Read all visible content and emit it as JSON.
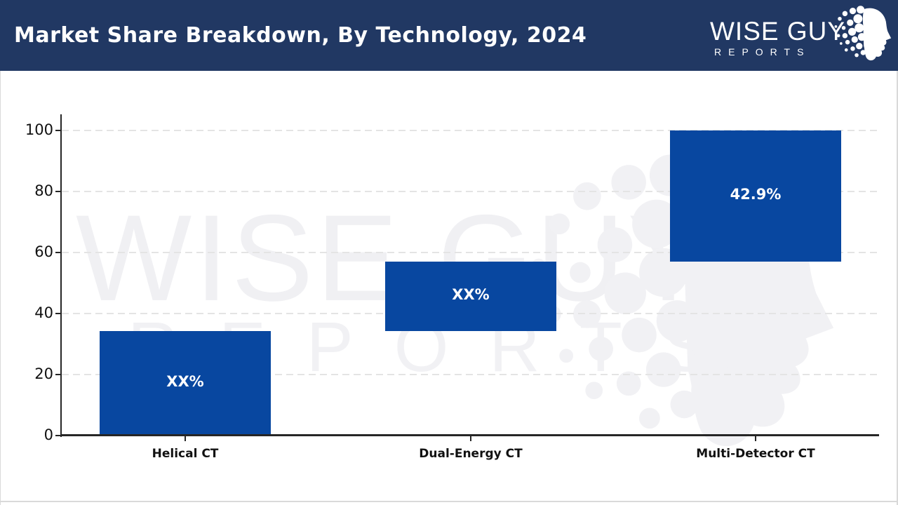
{
  "header": {
    "title": "Market Share Breakdown, By Technology, 2024",
    "bg_color": "#213863",
    "logo": {
      "line1": "WISE GUY",
      "line2": "REPORTS"
    }
  },
  "watermark": {
    "line1": "WISE GUY",
    "line2": "REPORTS"
  },
  "chart_data": {
    "type": "bar",
    "variant": "waterfall",
    "title": "Market Share Breakdown, By Technology, 2024",
    "categories": [
      "Helical CT",
      "Dual-Energy CT",
      "Multi-Detector CT"
    ],
    "segments": [
      {
        "category": "Helical CT",
        "start": 0,
        "end": 34.3,
        "label": "XX%"
      },
      {
        "category": "Dual-Energy CT",
        "start": 34.3,
        "end": 57.1,
        "label": "XX%"
      },
      {
        "category": "Multi-Detector CT",
        "start": 57.1,
        "end": 100,
        "label": "42.9%"
      }
    ],
    "unit": "%",
    "xlabel": "",
    "ylabel": "",
    "yticks": [
      0,
      20,
      40,
      60,
      80,
      100
    ],
    "ylim": [
      0,
      105
    ],
    "bar_color": "#0847a0",
    "grid": {
      "axis": "y",
      "style": "dashed",
      "color": "#e4e4e4"
    },
    "legend": null,
    "axis_color": "#262626"
  }
}
